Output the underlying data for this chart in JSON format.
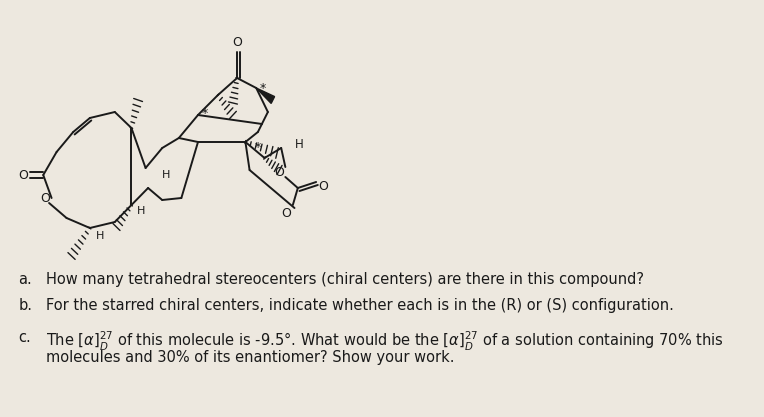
{
  "background_color": "#ede8df",
  "text_color": "#1a1a1a",
  "mol_color": "#1a1a1a",
  "font_size_q": 10.5,
  "q_a_label": "a.",
  "q_a_text": "How many tetrahedral stereocenters (chiral centers) are there in this compound?",
  "q_b_label": "b.",
  "q_b_text": "For the starred chiral centers, indicate whether each is in the (R) or (S) configuration.",
  "q_c_label": "c.",
  "q_c_line1": "The α D 27 of this molecule is -9.5°. What would be the α D 27 of a solution containing 70% this",
  "q_c_line2": "molecules and 30% of its enantiomer? Show your work."
}
